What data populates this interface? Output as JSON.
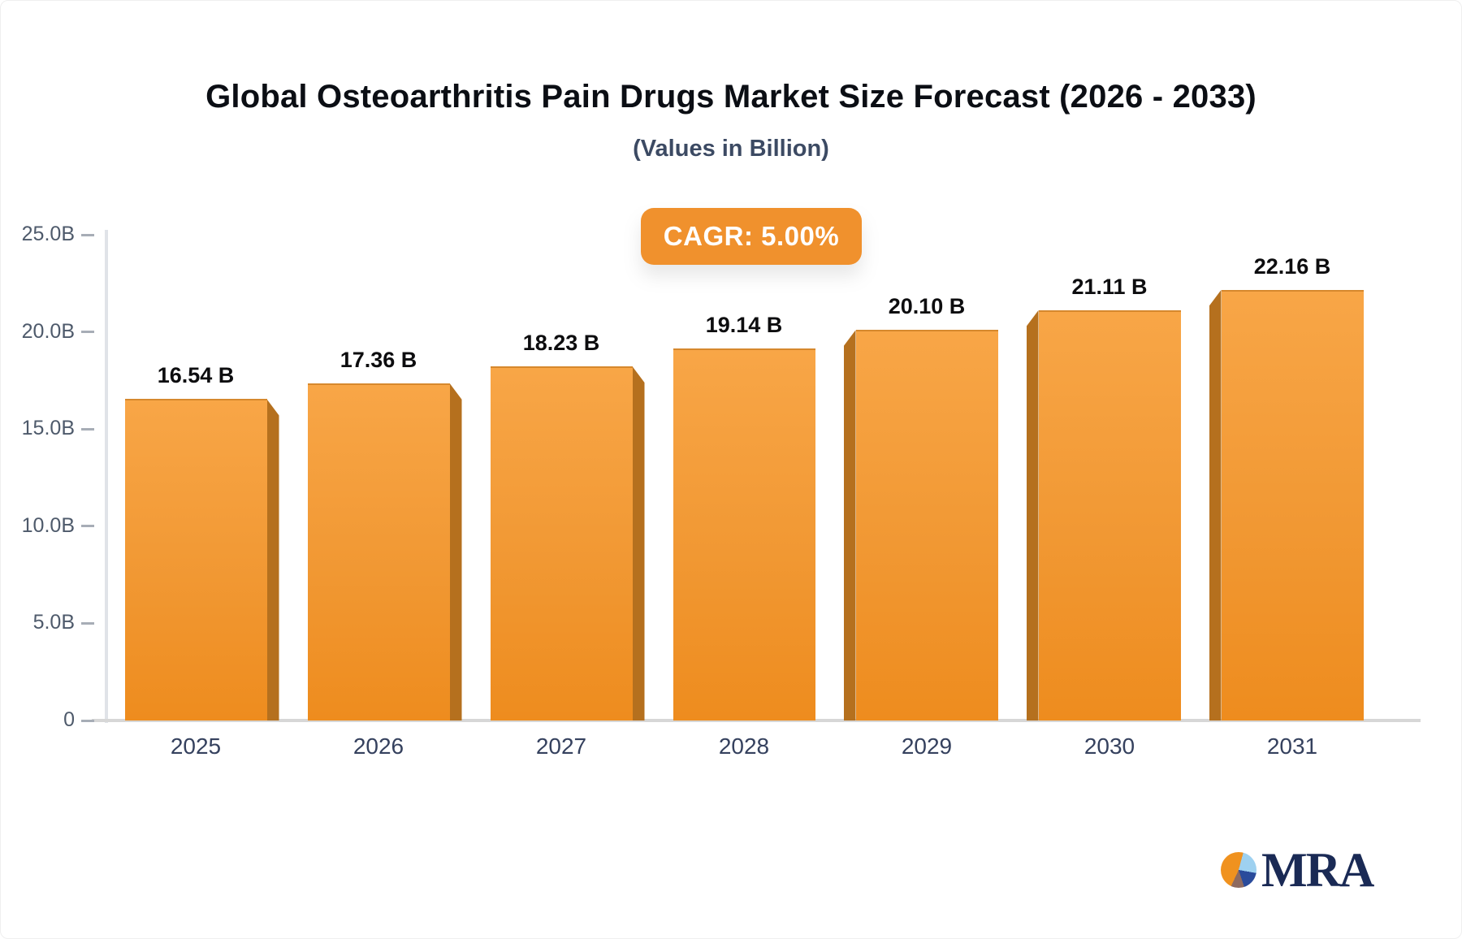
{
  "header": {
    "title": "Global Osteoarthritis Pain Drugs Market Size Forecast (2026 - 2033)",
    "subtitle": "(Values in Billion)"
  },
  "cagr_badge": {
    "label": "CAGR: 5.00%",
    "bg_color": "#f0912d",
    "text_color": "#ffffff"
  },
  "chart_data": {
    "type": "bar",
    "title": "Global Osteoarthritis Pain Drugs Market Size Forecast (2026 - 2033)",
    "subtitle": "(Values in Billion)",
    "categories": [
      "2025",
      "2026",
      "2027",
      "2028",
      "2029",
      "2030",
      "2031"
    ],
    "values": [
      16.54,
      17.36,
      18.23,
      19.14,
      20.1,
      21.11,
      22.16
    ],
    "value_labels": [
      "16.54 B",
      "17.36 B",
      "18.23 B",
      "19.14 B",
      "20.10 B",
      "21.11 B",
      "22.16 B"
    ],
    "xlabel": "",
    "ylabel": "",
    "ylim": [
      0,
      25
    ],
    "y_ticks": [
      {
        "value": 25,
        "label": "25.0B"
      },
      {
        "value": 20,
        "label": "20.0B"
      },
      {
        "value": 15,
        "label": "15.0B"
      },
      {
        "value": 10,
        "label": "10.0B"
      },
      {
        "value": 5,
        "label": "5.0B"
      },
      {
        "value": 0,
        "label": "0"
      }
    ],
    "grid": false,
    "legend": false,
    "annotation": "CAGR: 5.00%",
    "bar_style": {
      "face_top_color": "#f8a647",
      "face_bottom_color": "#ee8c1e",
      "side_color": "#b5701e",
      "effect": "3d-center-perspective"
    }
  },
  "logo": {
    "text": "MRA",
    "text_color": "#1a2a55",
    "pie_colors": [
      "#f0921f",
      "#9ed1f0",
      "#2a4b9b",
      "#8e6a60"
    ]
  }
}
